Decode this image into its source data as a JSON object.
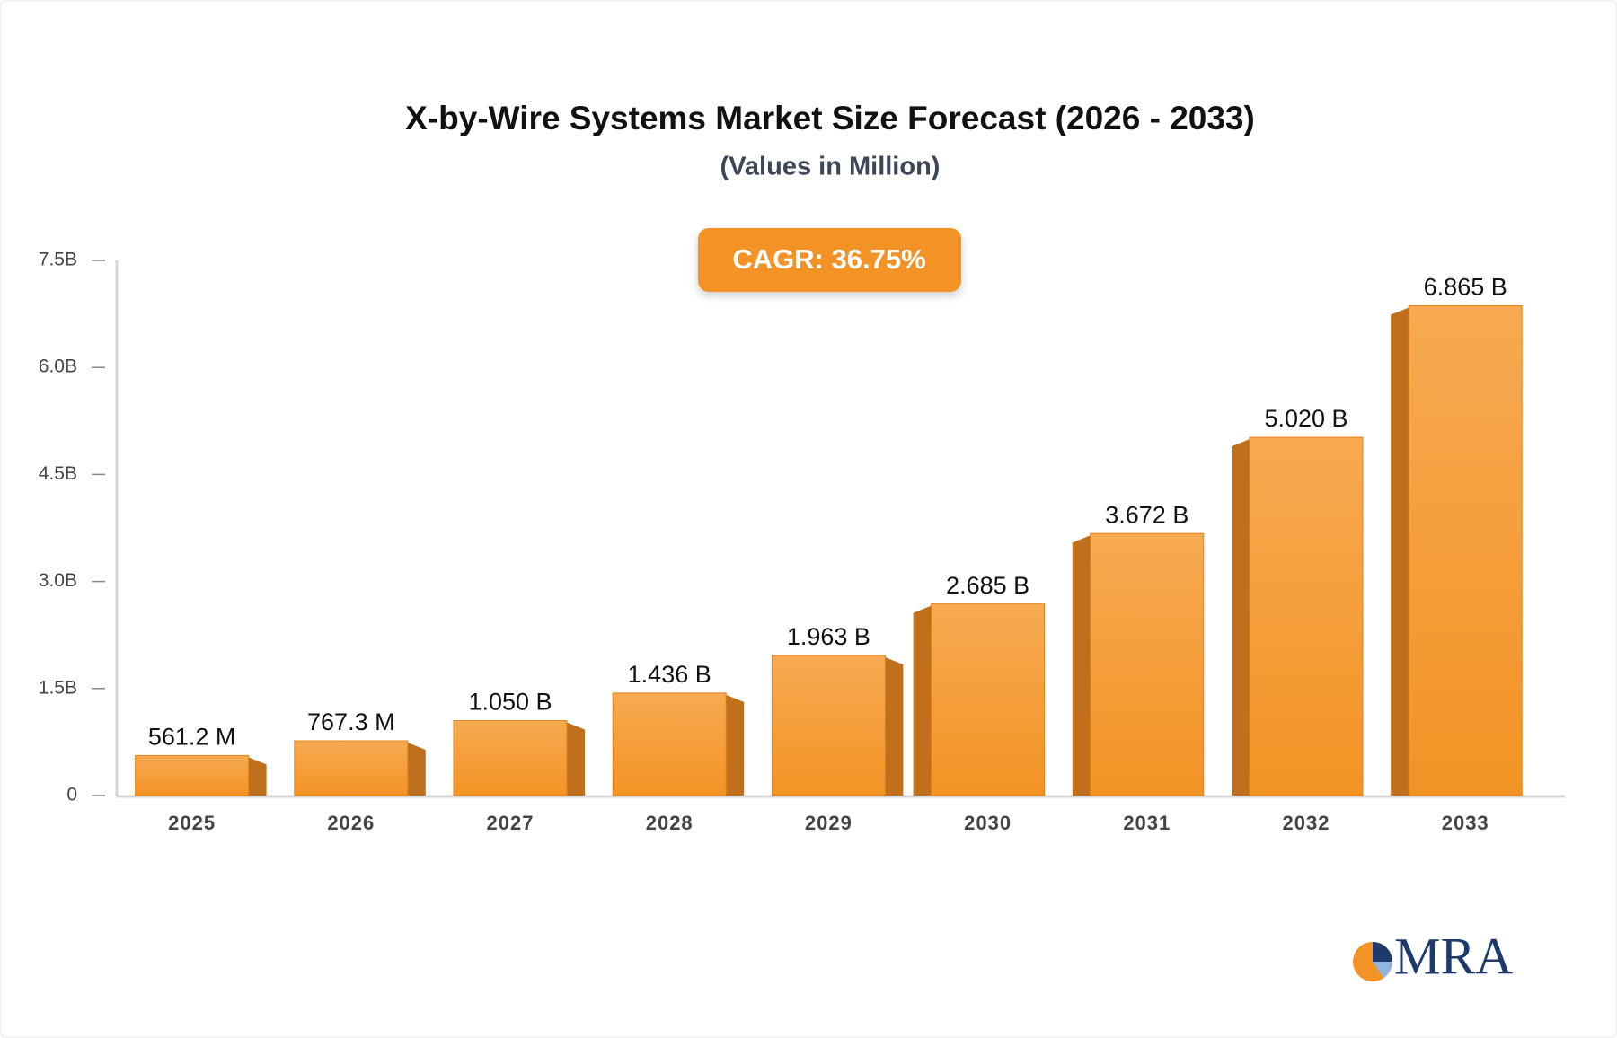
{
  "chart_data": {
    "type": "bar3d",
    "title": "X-by-Wire Systems Market Size Forecast (2026 - 2033)",
    "subtitle": "(Values in Million)",
    "annotation": "CAGR: 36.75%",
    "categories": [
      "2025",
      "2026",
      "2027",
      "2028",
      "2029",
      "2030",
      "2031",
      "2032",
      "2033"
    ],
    "values": [
      561.2,
      767.3,
      1050,
      1436,
      1963,
      2685,
      3672,
      5020,
      6865
    ],
    "value_labels": [
      "561.2 M",
      "767.3 M",
      "1.050 B",
      "1.436 B",
      "1.963 B",
      "2.685 B",
      "3.672 B",
      "5.020 B",
      "6.865 B"
    ],
    "color": "#f39325",
    "ylim": [
      0,
      7500
    ],
    "yticks": [
      0,
      {
        "value": 1500,
        "label": "1.5B"
      },
      {
        "value": 3000,
        "label": "3.0B"
      },
      {
        "value": 4500,
        "label": "4.5B"
      },
      {
        "value": 6000,
        "label": "6.0B"
      },
      {
        "value": 7500,
        "label": "7.5B"
      }
    ],
    "grid": false
  },
  "logo": "MRA"
}
